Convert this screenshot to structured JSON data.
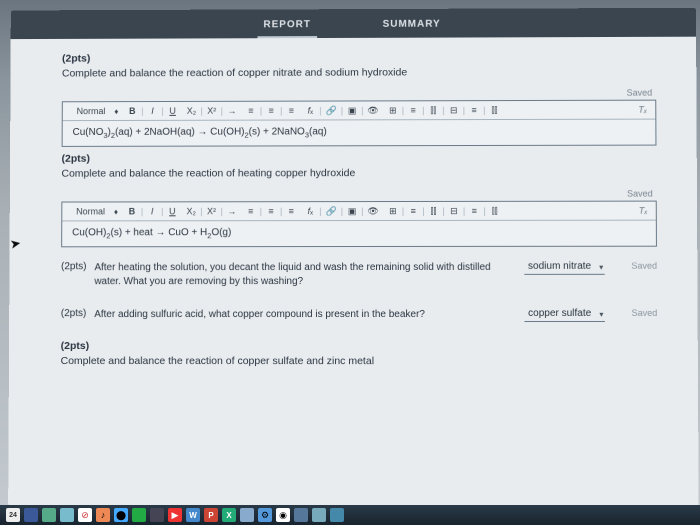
{
  "tabs": {
    "report": "REPORT",
    "summary": "SUMMARY"
  },
  "q1": {
    "pts": "(2pts)",
    "prompt": "Complete and balance the reaction of copper nitrate and sodium hydroxide",
    "saved": "Saved",
    "equation_html": "Cu(NO<sub>3</sub>)<sub>2</sub>(aq) + 2NaOH(aq) → Cu(OH)<sub>2</sub>(s) + 2NaNO<sub>3</sub>(aq)"
  },
  "q2": {
    "pts": "(2pts)",
    "prompt": "Complete and balance the reaction of heating copper hydroxide",
    "saved": "Saved",
    "equation_html": "Cu(OH)<sub>2</sub>(s) + heat → CuO + H<sub>2</sub>O(g)"
  },
  "toolbar": {
    "style_select": "Normal",
    "b": "B",
    "i": "I",
    "u": "U",
    "sub": "X₂",
    "sup": "X²",
    "tx": "Tₓ"
  },
  "q3": {
    "pts": "(2pts)",
    "text": "After heating the solution, you decant the liquid and wash the remaining solid with distilled water. What you are removing by this washing?",
    "answer": "sodium nitrate",
    "saved": "Saved"
  },
  "q4": {
    "pts": "(2pts)",
    "text": "After adding sulfuric acid, what copper compound is present in the beaker?",
    "answer": "copper sulfate",
    "saved": "Saved"
  },
  "q5": {
    "pts": "(2pts)",
    "prompt": "Complete and balance the reaction of copper sulfate and zinc metal"
  },
  "taskbar_date": "24"
}
